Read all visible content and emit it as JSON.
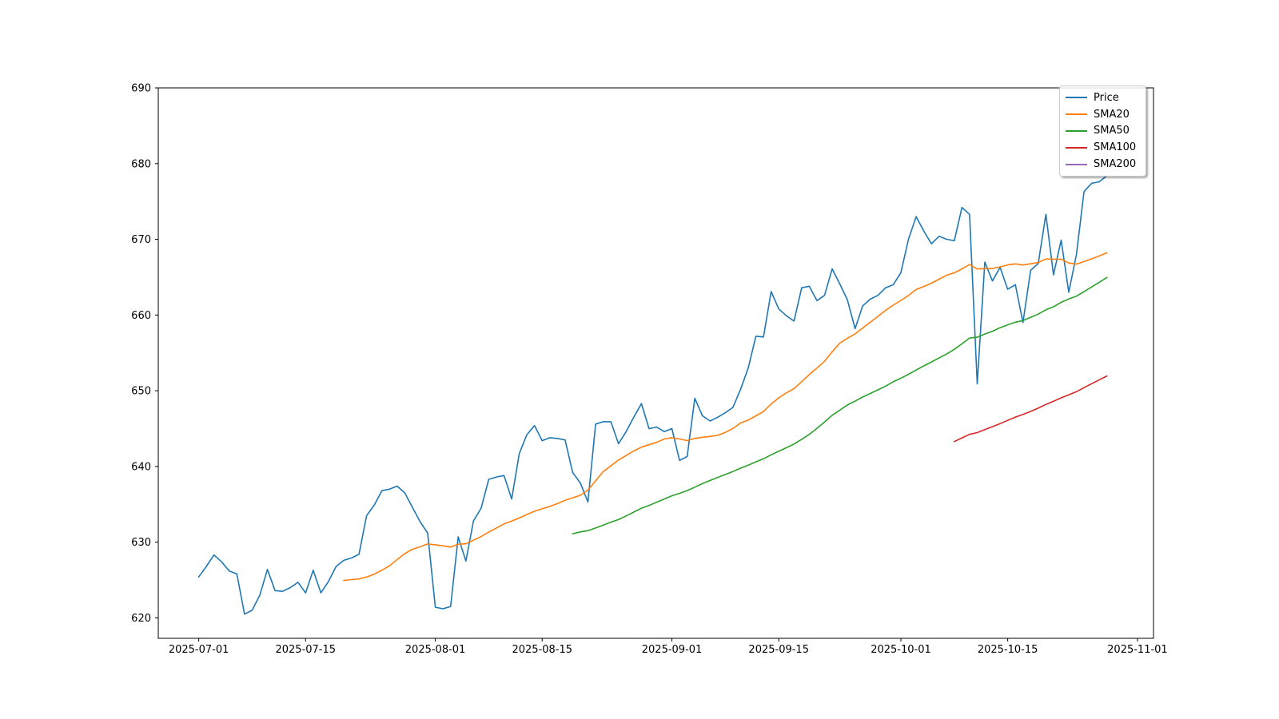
{
  "figure": {
    "background": "#ffffff",
    "axes_edge_color": "#000000",
    "tick_color": "#000000"
  },
  "chart_data": {
    "type": "line",
    "title": "",
    "xlabel": "",
    "ylabel": "",
    "grid": false,
    "x_start_date": "2025-07-01",
    "x_freq_days": 1,
    "x_ticks": [
      "2025-07-01",
      "2025-07-15",
      "2025-08-01",
      "2025-08-15",
      "2025-09-01",
      "2025-09-15",
      "2025-10-01",
      "2025-10-15",
      "2025-11-01"
    ],
    "y_ticks": [
      "620",
      "630",
      "640",
      "650",
      "660",
      "670",
      "680",
      "690"
    ],
    "ylim": [
      617.3,
      690
    ],
    "xlim_days_from_start": [
      -5.3,
      125.1
    ],
    "legend": {
      "position": "upper-right",
      "entries": [
        "Price",
        "SMA20",
        "SMA50",
        "SMA100",
        "SMA200"
      ]
    },
    "series": [
      {
        "name": "Price",
        "color": "#1f77b4",
        "values": [
          625.4,
          626.8,
          628.3,
          627.4,
          626.2,
          625.8,
          620.5,
          621.0,
          623.0,
          626.4,
          623.6,
          623.5,
          624.0,
          624.7,
          623.3,
          626.3,
          623.3,
          624.8,
          626.8,
          627.6,
          627.9,
          628.4,
          633.5,
          634.9,
          636.8,
          637.0,
          637.4,
          636.5,
          634.6,
          632.7,
          631.2,
          621.4,
          621.2,
          621.5,
          630.7,
          627.5,
          632.8,
          634.5,
          638.3,
          638.6,
          638.8,
          635.7,
          641.7,
          644.2,
          645.4,
          643.4,
          643.8,
          643.7,
          643.5,
          639.2,
          637.8,
          635.3,
          645.6,
          645.9,
          645.9,
          643.0,
          644.6,
          646.5,
          648.3,
          645.0,
          645.2,
          644.6,
          645.0,
          640.8,
          641.3,
          649.0,
          646.7,
          646.0,
          646.5,
          647.1,
          647.8,
          650.2,
          653.0,
          657.2,
          657.1,
          663.1,
          660.8,
          659.9,
          659.2,
          663.6,
          663.8,
          661.9,
          662.6,
          666.1,
          664.1,
          662.0,
          658.2,
          661.2,
          662.1,
          662.6,
          663.6,
          664.0,
          665.6,
          670.0,
          673.0,
          671.1,
          669.4,
          670.4,
          670.0,
          669.8,
          674.2,
          673.3,
          650.9,
          667.0,
          664.5,
          666.3,
          663.4,
          664.0,
          659.0,
          665.9,
          666.8,
          673.3,
          665.3,
          669.9,
          663.0,
          668.0,
          676.3,
          677.4,
          677.6,
          678.4
        ]
      },
      {
        "name": "SMA20",
        "color": "#ff7f0e",
        "derived": "moving_average_of_Price",
        "window": 20
      },
      {
        "name": "SMA50",
        "color": "#2ca02c",
        "derived": "moving_average_of_Price",
        "window": 50
      },
      {
        "name": "SMA100",
        "color": "#d62728",
        "derived": "moving_average_of_Price",
        "window": 100
      },
      {
        "name": "SMA200",
        "color": "#9467bd",
        "derived": "moving_average_of_Price",
        "window": 200
      }
    ]
  }
}
